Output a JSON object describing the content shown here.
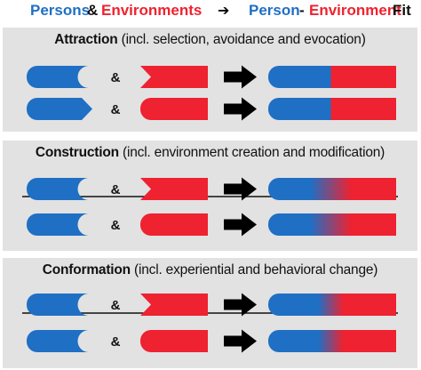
{
  "header": {
    "persons": "Persons",
    "amp": "&",
    "environments": "Environments",
    "arrow": "➔",
    "person": "Person",
    "dash": "-",
    "environment": "Environment",
    "fit": "Fit"
  },
  "colors": {
    "person_blue": "#1f6fc4",
    "environment_red": "#ee2230",
    "arrow_black": "#000000",
    "panel_gray": "#e2e2e2"
  },
  "panels": [
    {
      "name_label": "Attraction",
      "detail_label": " (incl. selection, avoidance and evocation)",
      "rows": [
        {
          "person_shape": "notched-circle",
          "amp": "&",
          "env_shape": "notched-arrow",
          "blend": "sharp"
        },
        {
          "person_shape": "arrow-point",
          "amp": "&",
          "env_shape": "notched-circle",
          "blend": "sharp"
        }
      ]
    },
    {
      "name_label": "Construction",
      "detail_label": " (incl. environment creation and modification)",
      "rows": [
        {
          "person_shape": "notched-circle",
          "amp": "&",
          "env_shape": "notched-arrow",
          "blend": "medium"
        },
        {
          "person_shape": "notched-circle",
          "amp": "&",
          "env_shape": "notched-circle",
          "blend": "medium"
        }
      ]
    },
    {
      "name_label": "Conformation",
      "detail_label": " (incl. experiential and behavioral change)",
      "rows": [
        {
          "person_shape": "notched-circle",
          "amp": "&",
          "env_shape": "notched-arrow",
          "blend": "soft"
        },
        {
          "person_shape": "notched-circle",
          "amp": "&",
          "env_shape": "notched-circle",
          "blend": "soft"
        }
      ]
    }
  ]
}
